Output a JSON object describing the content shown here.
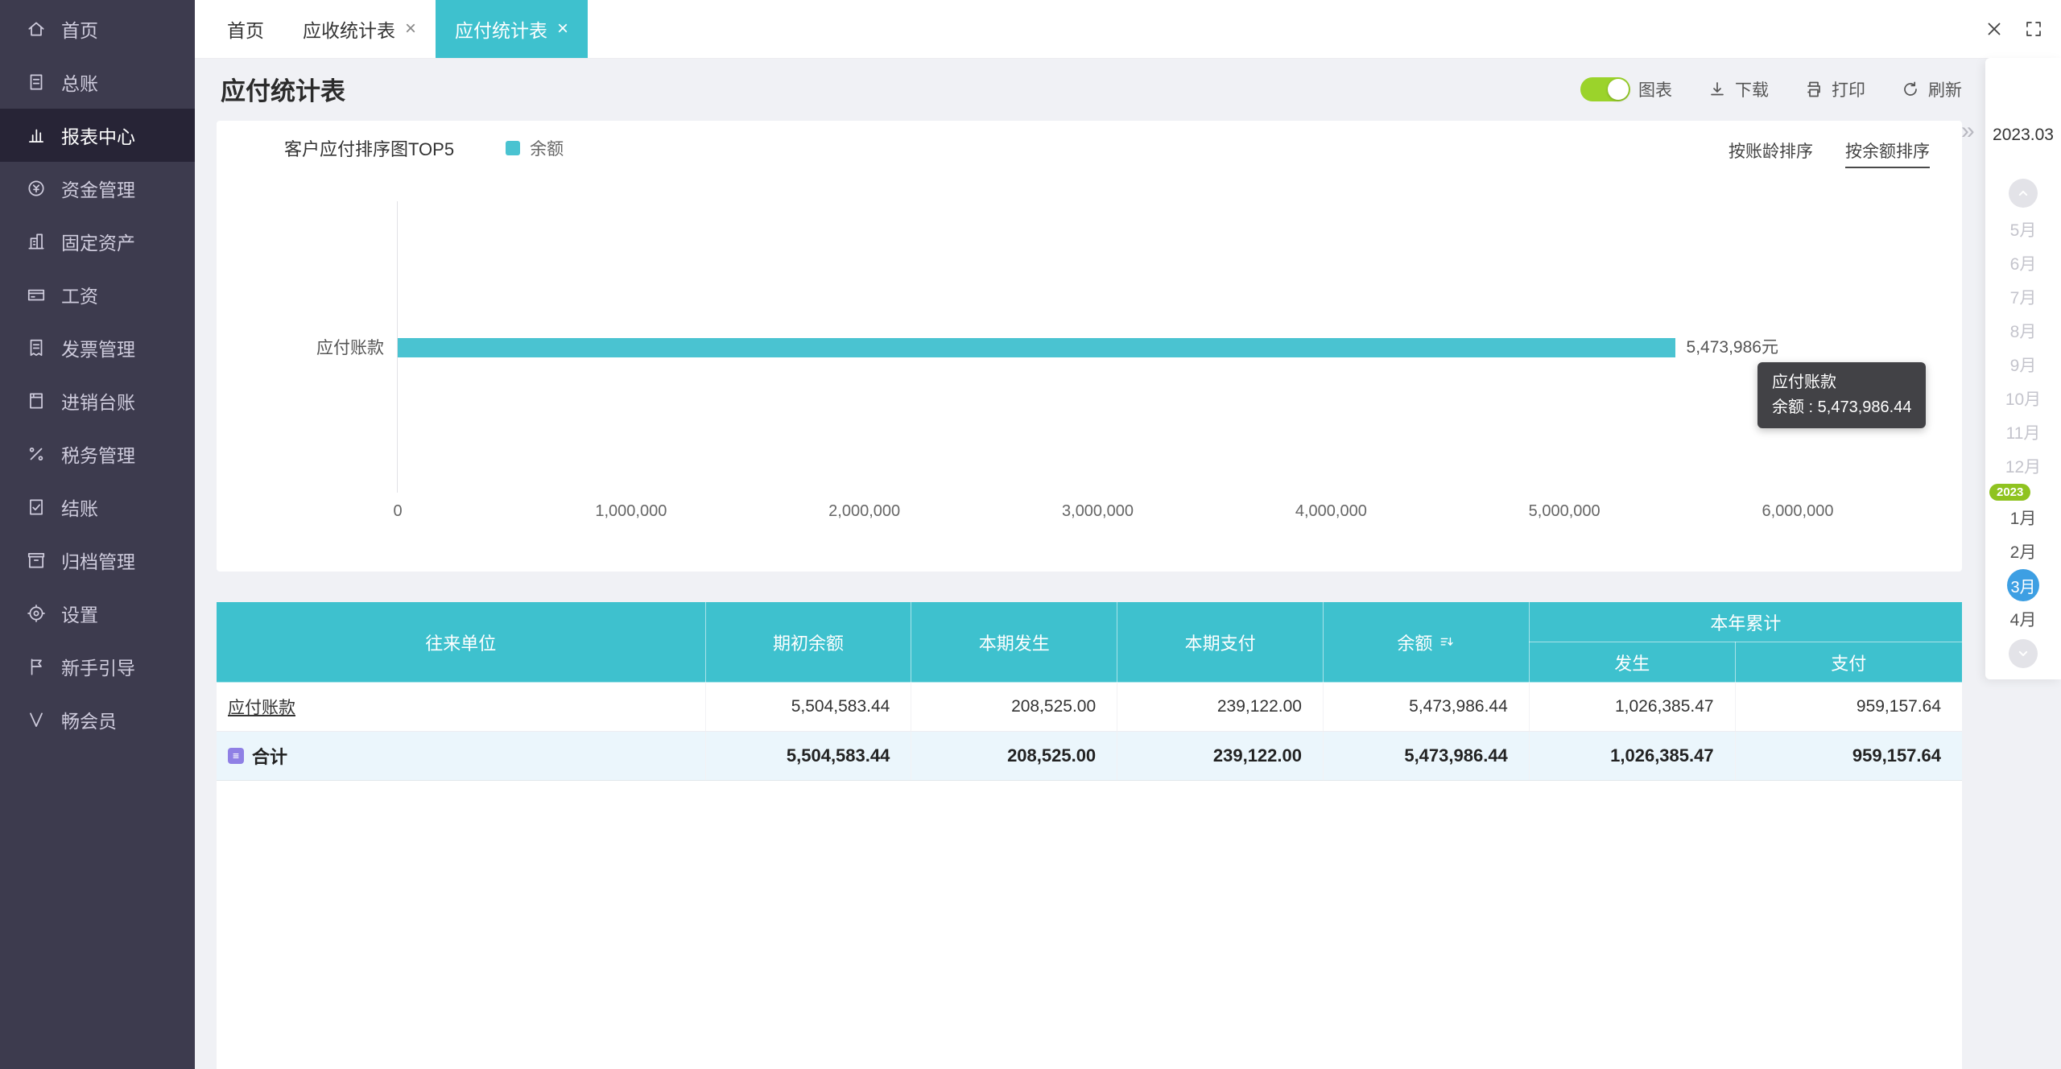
{
  "colors": {
    "accent_teal": "#3ec1ce",
    "bar_teal": "#4ac3d1",
    "toggle_green": "#9bd32b",
    "selected_month_blue": "#3d9fe3",
    "year_badge_green": "#8fc320",
    "sidebar_bg": "#3d3b4e"
  },
  "sidebar": {
    "items": [
      {
        "label": "首页",
        "icon": "home-icon",
        "active": false
      },
      {
        "label": "总账",
        "icon": "ledger-icon",
        "active": false
      },
      {
        "label": "报表中心",
        "icon": "report-icon",
        "active": true
      },
      {
        "label": "资金管理",
        "icon": "fund-icon",
        "active": false
      },
      {
        "label": "固定资产",
        "icon": "asset-icon",
        "active": false
      },
      {
        "label": "工资",
        "icon": "salary-icon",
        "active": false
      },
      {
        "label": "发票管理",
        "icon": "invoice-icon",
        "active": false
      },
      {
        "label": "进销台账",
        "icon": "inventory-icon",
        "active": false
      },
      {
        "label": "税务管理",
        "icon": "tax-icon",
        "active": false
      },
      {
        "label": "结账",
        "icon": "closing-icon",
        "active": false
      },
      {
        "label": "归档管理",
        "icon": "archive-icon",
        "active": false
      },
      {
        "label": "设置",
        "icon": "settings-icon",
        "active": false
      },
      {
        "label": "新手引导",
        "icon": "guide-icon",
        "active": false
      },
      {
        "label": "畅会员",
        "icon": "member-icon",
        "active": false
      }
    ]
  },
  "tabbar": {
    "close_glyph": "×",
    "tabs": [
      {
        "label": "首页",
        "closable": false,
        "active": false
      },
      {
        "label": "应收统计表",
        "closable": true,
        "active": false
      },
      {
        "label": "应付统计表",
        "closable": true,
        "active": true
      }
    ]
  },
  "page": {
    "title": "应付统计表"
  },
  "toolbar": {
    "chart_label": "图表",
    "download_label": "下载",
    "print_label": "打印",
    "refresh_label": "刷新"
  },
  "chart": {
    "title": "客户应付排序图TOP5",
    "legend_label": "余额",
    "sort_aging_label": "按账龄排序",
    "sort_balance_label": "按余额排序",
    "bar_value_label": "5,473,986元",
    "tooltip_title": "应付账款",
    "tooltip_value": "余额 : 5,473,986.44"
  },
  "chart_data": {
    "type": "bar",
    "orientation": "horizontal",
    "title": "客户应付排序图TOP5",
    "categories": [
      "应付账款"
    ],
    "series": [
      {
        "name": "余额",
        "values": [
          5473986.44
        ]
      }
    ],
    "value_labels": [
      "5,473,986元"
    ],
    "xlim": [
      0,
      6000000
    ],
    "x_ticks": [
      "0",
      "1,000,000",
      "2,000,000",
      "3,000,000",
      "4,000,000",
      "5,000,000",
      "6,000,000"
    ],
    "bar_color": "#4ac3d1",
    "grid": false,
    "legend_position": "top"
  },
  "table": {
    "headers": {
      "unit": "往来单位",
      "opening": "期初余额",
      "incurred": "本期发生",
      "paid": "本期支付",
      "balance": "余额",
      "ytd_group": "本年累计",
      "ytd_incurred": "发生",
      "ytd_paid": "支付"
    },
    "rows": [
      {
        "unit": "应付账款",
        "opening": "5,504,583.44",
        "incurred": "208,525.00",
        "paid": "239,122.00",
        "balance": "5,473,986.44",
        "ytd_incurred": "1,026,385.47",
        "ytd_paid": "959,157.64"
      }
    ],
    "total": {
      "label": "合计",
      "opening": "5,504,583.44",
      "incurred": "208,525.00",
      "paid": "239,122.00",
      "balance": "5,473,986.44",
      "ytd_incurred": "1,026,385.47",
      "ytd_paid": "959,157.64"
    }
  },
  "calendar": {
    "current_period": "2023.03",
    "collapse_glyph": "»",
    "months": [
      {
        "label": "5月",
        "state": "disabled"
      },
      {
        "label": "6月",
        "state": "disabled"
      },
      {
        "label": "7月",
        "state": "disabled"
      },
      {
        "label": "8月",
        "state": "disabled"
      },
      {
        "label": "9月",
        "state": "disabled"
      },
      {
        "label": "10月",
        "state": "disabled"
      },
      {
        "label": "11月",
        "state": "disabled"
      },
      {
        "label": "12月",
        "state": "disabled"
      },
      {
        "label": "2023",
        "state": "year"
      },
      {
        "label": "1月",
        "state": "normal"
      },
      {
        "label": "2月",
        "state": "normal"
      },
      {
        "label": "3月",
        "state": "selected"
      },
      {
        "label": "4月",
        "state": "normal"
      }
    ]
  }
}
